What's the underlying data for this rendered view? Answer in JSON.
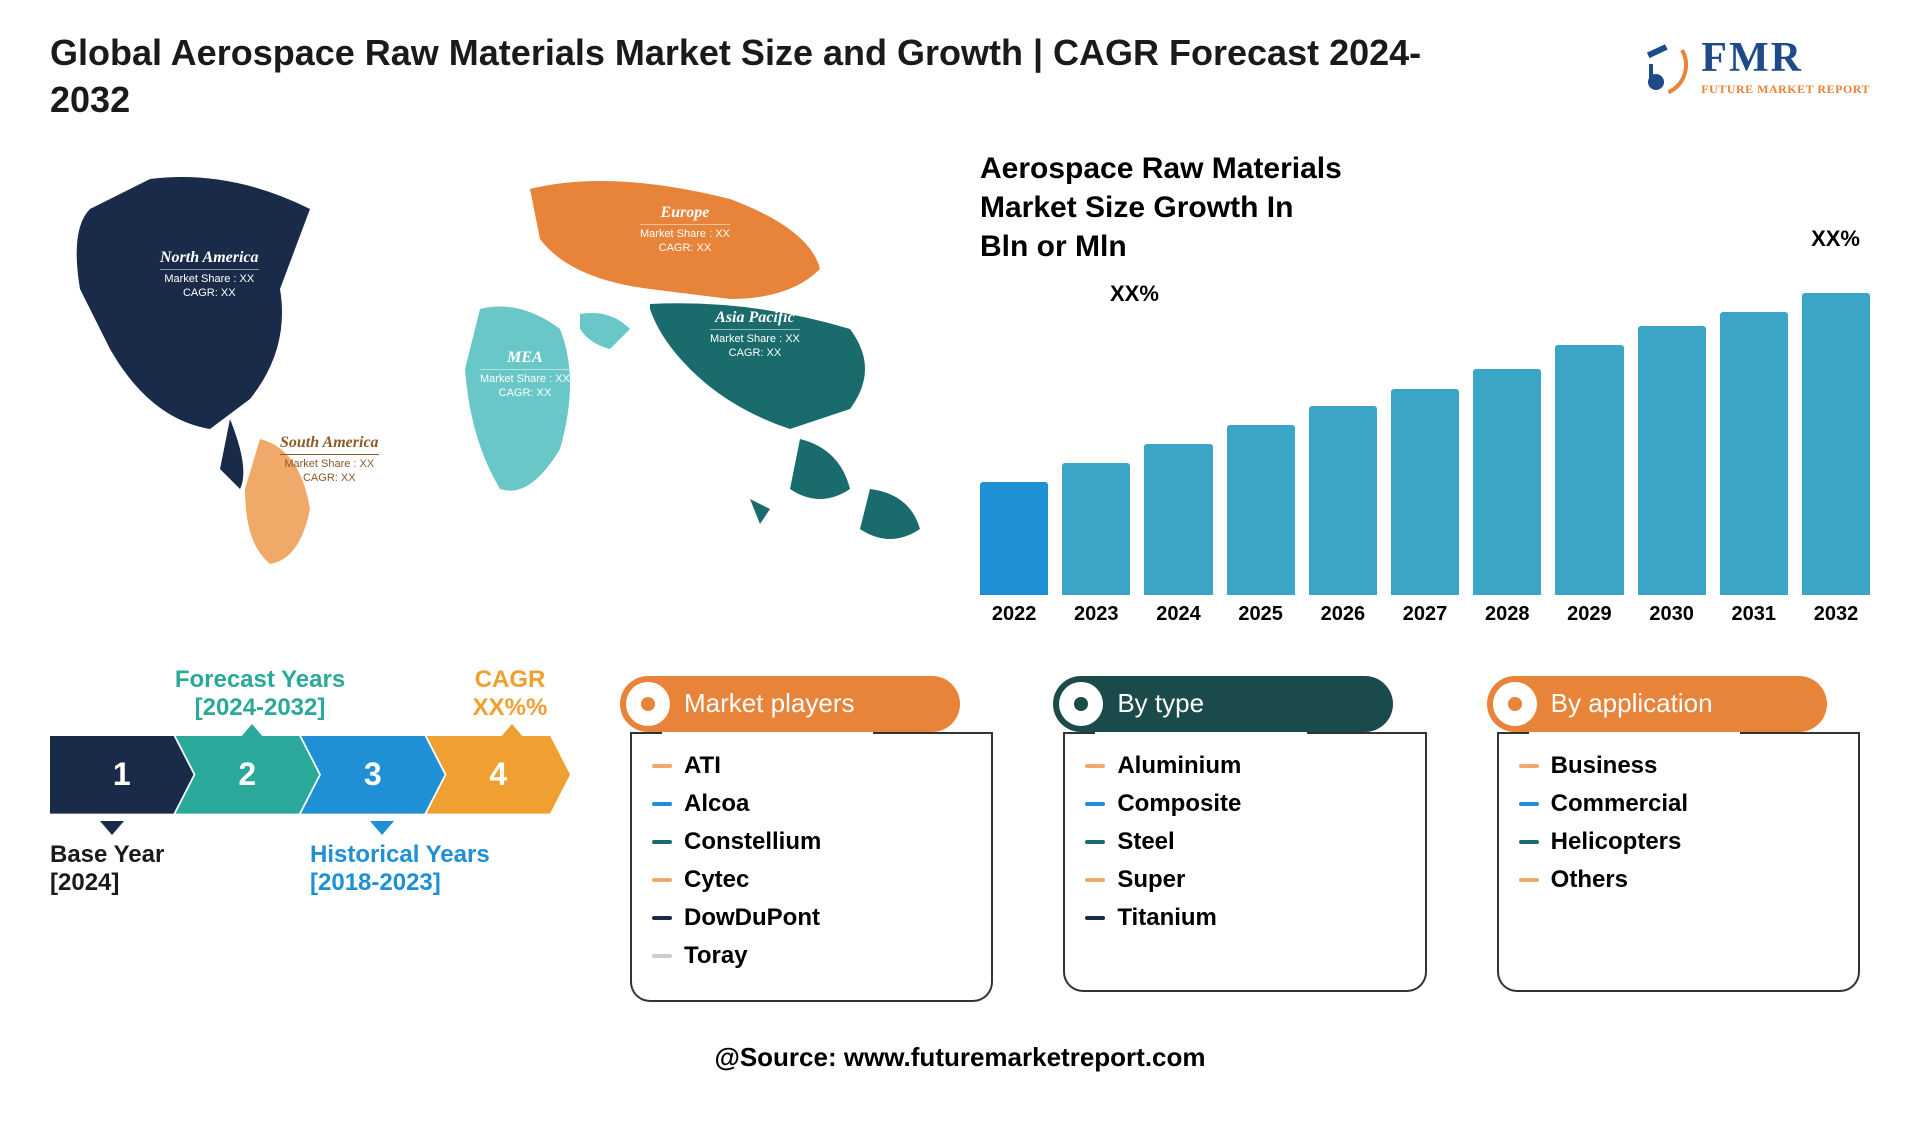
{
  "title": "Global Aerospace Raw Materials Market Size and Growth | CAGR Forecast 2024-2032",
  "logo": {
    "big": "FMR",
    "small": "FUTURE MARKET REPORT",
    "accent_color": "#e8833a",
    "text_color": "#1e4a8a"
  },
  "map": {
    "regions": [
      {
        "name": "North America",
        "color": "#1a2b4a",
        "share": "Market Share : XX",
        "cagr": "CAGR: XX"
      },
      {
        "name": "South America",
        "color": "#f0a968",
        "share": "Market Share : XX",
        "cagr": "CAGR: XX"
      },
      {
        "name": "Europe",
        "color": "#e8833a",
        "share": "Market Share : XX",
        "cagr": "CAGR: XX"
      },
      {
        "name": "MEA",
        "color": "#6ac7c7",
        "share": "Market Share : XX",
        "cagr": "CAGR: XX"
      },
      {
        "name": "Asia Pacific",
        "color": "#1a6b6b",
        "share": "Market Share : XX",
        "cagr": "CAGR: XX"
      }
    ]
  },
  "bar_chart": {
    "type": "bar",
    "title_line1": "Aerospace Raw Materials",
    "title_line2": "Market Size Growth In",
    "title_line3": "Bln or Mln",
    "title_fontsize": 30,
    "years": [
      "2022",
      "2023",
      "2024",
      "2025",
      "2026",
      "2027",
      "2028",
      "2029",
      "2030",
      "2031",
      "2032"
    ],
    "values": [
      120,
      140,
      160,
      180,
      200,
      218,
      240,
      265,
      285,
      300,
      320
    ],
    "ylim": [
      0,
      340
    ],
    "bar_color_first": "#1f8fd6",
    "bar_color_rest": "#3aa5c7",
    "label_fontsize": 20,
    "annotation_2024": "XX%",
    "annotation_2032": "XX%",
    "background_color": "#ffffff"
  },
  "timeline": {
    "items": [
      {
        "num": "1",
        "color": "#1a2b4a",
        "label": "Base Year [2024]",
        "label_color": "#1a1a1a",
        "pos": "bottom"
      },
      {
        "num": "2",
        "color": "#2aa89a",
        "label": "Forecast Years [2024-2032]",
        "label_color": "#2aa89a",
        "pos": "top"
      },
      {
        "num": "3",
        "color": "#1f8fd6",
        "label": "Historical Years [2018-2023]",
        "label_color": "#1f8fd6",
        "pos": "bottom"
      },
      {
        "num": "4",
        "color": "#f0a030",
        "label": "CAGR XX%%",
        "label_color": "#f0a030",
        "pos": "top"
      }
    ]
  },
  "categories": [
    {
      "header": "Market players",
      "header_color": "#e8833a",
      "items": [
        {
          "label": "ATI",
          "tick": "#f0a968"
        },
        {
          "label": "Alcoa",
          "tick": "#1f8fd6"
        },
        {
          "label": "Constellium",
          "tick": "#1a6b6b"
        },
        {
          "label": "Cytec",
          "tick": "#f0a968"
        },
        {
          "label": "DowDuPont",
          "tick": "#1a2b4a"
        },
        {
          "label": "Toray",
          "tick": "#cccccc"
        }
      ]
    },
    {
      "header": "By type",
      "header_color": "#1a4a4a",
      "items": [
        {
          "label": "Aluminium",
          "tick": "#f0a968"
        },
        {
          "label": "Composite",
          "tick": "#1f8fd6"
        },
        {
          "label": "Steel",
          "tick": "#1a6b6b"
        },
        {
          "label": "Super",
          "tick": "#f0a968"
        },
        {
          "label": "Titanium",
          "tick": "#1a2b4a"
        }
      ]
    },
    {
      "header": "By application",
      "header_color": "#e8833a",
      "items": [
        {
          "label": "Business",
          "tick": "#f0a968"
        },
        {
          "label": "Commercial",
          "tick": "#1f8fd6"
        },
        {
          "label": "Helicopters",
          "tick": "#1a6b6b"
        },
        {
          "label": "Others",
          "tick": "#f0a968"
        }
      ]
    }
  ],
  "source": "@Source: www.futuremarketreport.com"
}
